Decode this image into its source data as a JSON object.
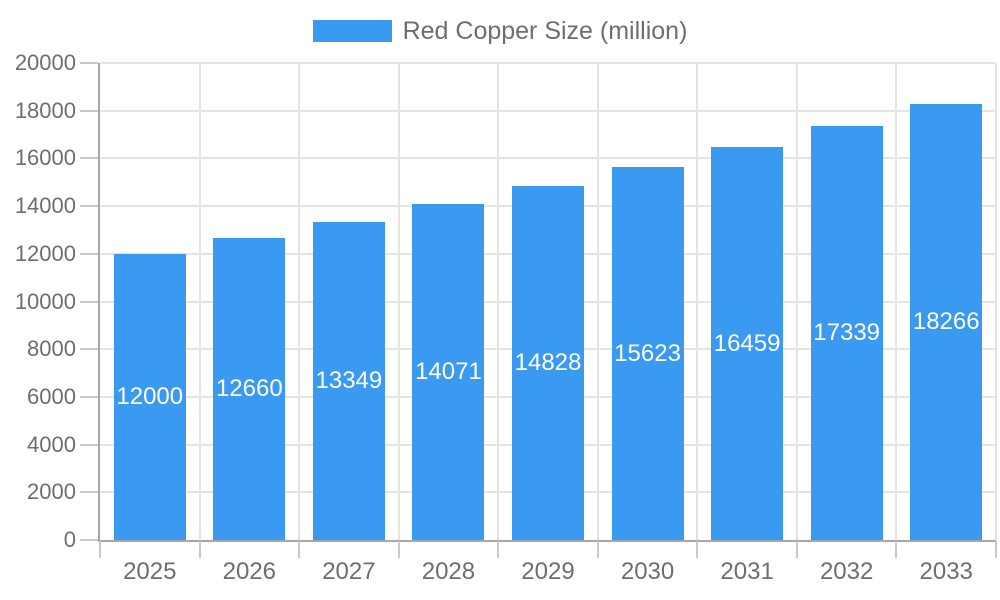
{
  "chart_data": {
    "type": "bar",
    "title": "",
    "legend": {
      "label": "Red Copper Size (million)",
      "position": "top"
    },
    "categories": [
      "2025",
      "2026",
      "2027",
      "2028",
      "2029",
      "2030",
      "2031",
      "2032",
      "2033"
    ],
    "series": [
      {
        "name": "Red Copper Size (million)",
        "values": [
          12000,
          12660,
          13349,
          14071,
          14828,
          15623,
          16459,
          17339,
          18266
        ]
      }
    ],
    "xlabel": "",
    "ylabel": "",
    "ylim": [
      0,
      20000
    ],
    "ytick_step": 2000,
    "grid": true,
    "bar_value_labels": "inside-center",
    "style": {
      "bar_color": "#3a99f0",
      "bar_label_color": "#ffffff",
      "axis_text_color": "#6e6e6e",
      "grid_color": "#e4e4e4",
      "tick_color": "#c9c9c9",
      "axis_line_color": "#a7a7a7",
      "background": "#ffffff"
    }
  }
}
